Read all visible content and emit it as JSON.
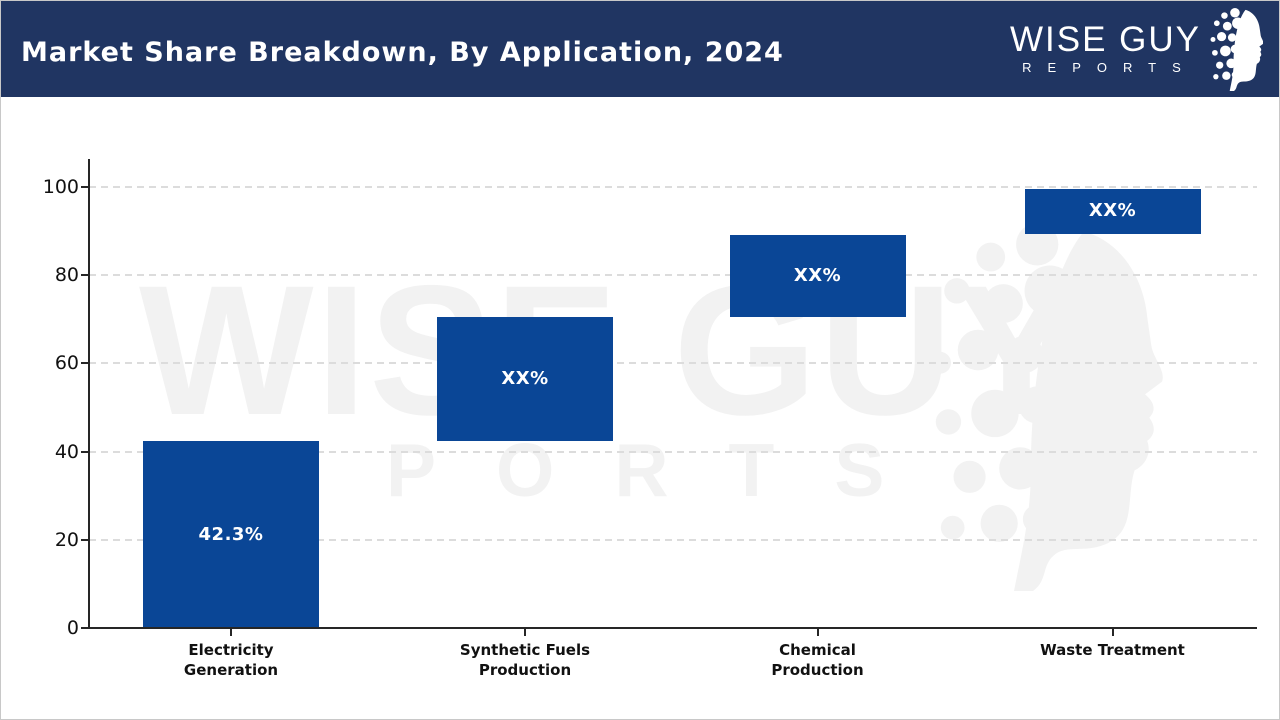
{
  "header": {
    "title": "Market Share Breakdown, By Application, 2024",
    "logo": {
      "line1": "WISE GUY",
      "line2": "REPORTS",
      "head_icon": "head-profile-dots-icon"
    }
  },
  "watermark": {
    "line1": "WISE GUY",
    "line2": "PORTS"
  },
  "chart_data": {
    "type": "bar",
    "variant": "waterfall",
    "title": "Market Share Breakdown, By Application, 2024",
    "xlabel": "",
    "ylabel": "",
    "ylim": [
      0,
      107
    ],
    "yticks": [
      0,
      20,
      40,
      60,
      80,
      100
    ],
    "grid": "horizontal-dashed",
    "legend": "none",
    "categories": [
      "Electricity Generation",
      "Synthetic Fuels Production",
      "Chemical Production",
      "Waste Treatment"
    ],
    "category_lines": [
      [
        "Electricity",
        "Generation"
      ],
      [
        "Synthetic Fuels",
        "Production"
      ],
      [
        "Chemical",
        "Production"
      ],
      [
        "Waste Treatment"
      ]
    ],
    "segments": [
      {
        "category": "Electricity Generation",
        "start": 0,
        "end": 42.3,
        "label": "42.3%"
      },
      {
        "category": "Synthetic Fuels Production",
        "start": 42.3,
        "end": 70.5,
        "label": "XX%"
      },
      {
        "category": "Chemical Production",
        "start": 70.5,
        "end": 89.0,
        "label": "XX%"
      },
      {
        "category": "Waste Treatment",
        "start": 89.3,
        "end": 99.6,
        "label": "XX%"
      }
    ],
    "bar_color": "#0a4696",
    "bar_label_color": "#ffffff"
  },
  "colors": {
    "header_bg": "#203562",
    "bar": "#0a4696",
    "axis": "#262626",
    "grid": "#dcdcdc",
    "tick_text": "#111111",
    "watermark": "#f2f2f2",
    "page_border": "#c8c8c8"
  }
}
